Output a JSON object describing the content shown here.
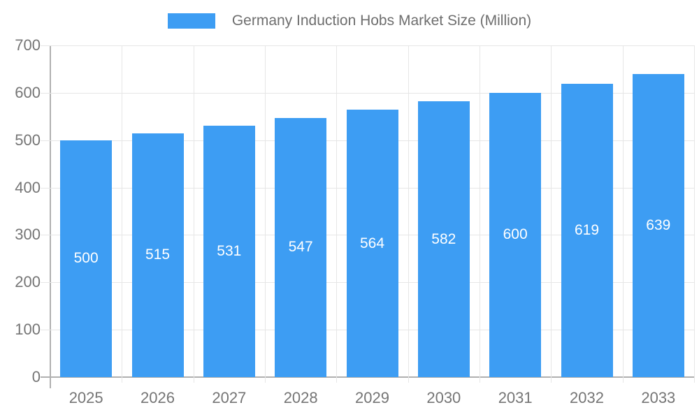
{
  "legend": {
    "label": "Germany Induction Hobs Market Size (Million)"
  },
  "colors": {
    "bar": "#3d9df3",
    "bar_label": "#ffffff",
    "axis_text": "#757575",
    "legend_text": "#6e6e6e",
    "gridline": "#e6e6e6",
    "axis_line": "#b0b0b0",
    "background": "#ffffff"
  },
  "chart_data": {
    "type": "bar",
    "title": "Germany Induction Hobs Market Size (Million)",
    "categories": [
      "2025",
      "2026",
      "2027",
      "2028",
      "2029",
      "2030",
      "2031",
      "2032",
      "2033"
    ],
    "values": [
      500,
      515,
      531,
      547,
      564,
      582,
      600,
      619,
      639
    ],
    "xlabel": "",
    "ylabel": "",
    "ylim": [
      0,
      700
    ],
    "ytick_step": 100,
    "yticks": [
      0,
      100,
      200,
      300,
      400,
      500,
      600,
      700
    ],
    "grid": true,
    "legend_position": "top",
    "bar_value_labels": "inside-center"
  }
}
